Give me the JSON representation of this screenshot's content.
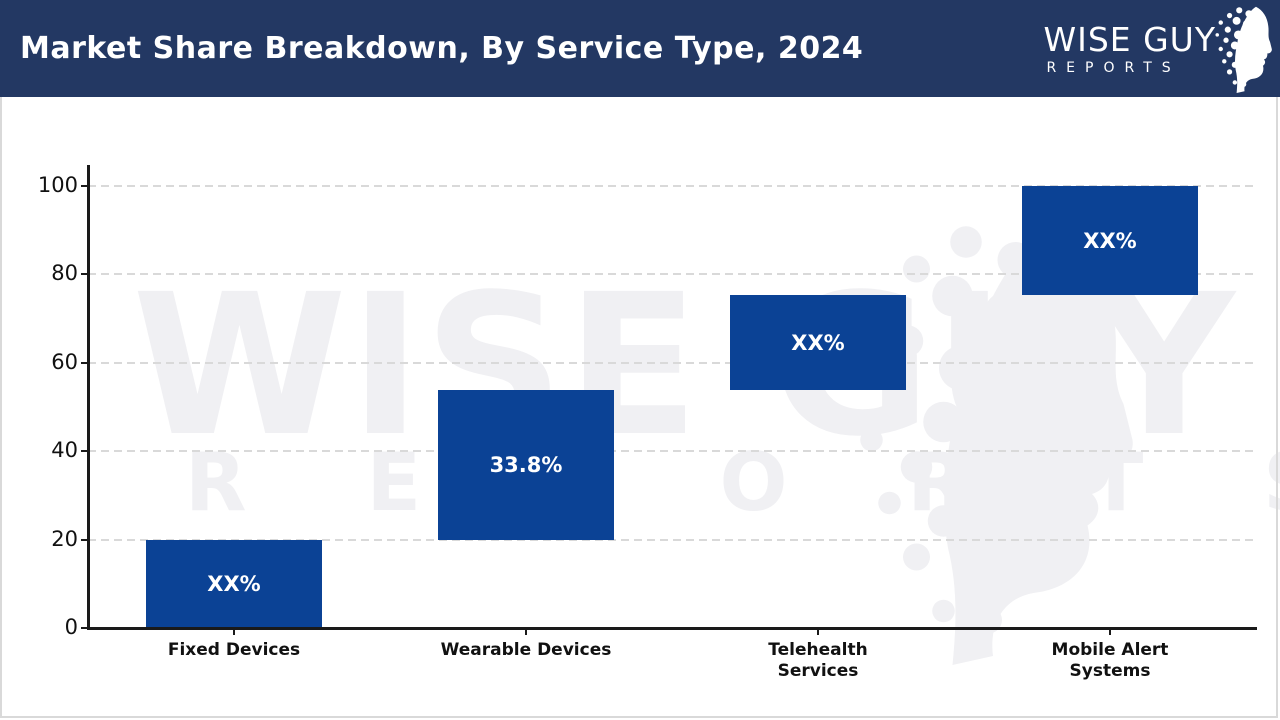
{
  "header": {
    "title": "Market Share Breakdown, By Service Type, 2024",
    "logo": {
      "line1": "WISE GUY",
      "line2": "REPORTS"
    }
  },
  "watermark": {
    "line1": "WISE GUY",
    "line2": "R E P O R T S"
  },
  "colors": {
    "header_bg": "#233863",
    "bar": "#0b4295",
    "bar_label": "#ffffff",
    "grid": "#d9d9d9",
    "axis": "#1a1a1a",
    "watermark": "#f0f0f3"
  },
  "chart_data": {
    "type": "bar",
    "subtype": "waterfall",
    "title": "Market Share Breakdown, By Service Type, 2024",
    "categories": [
      "Fixed Devices",
      "Wearable Devices",
      "Telehealth\nServices",
      "Mobile Alert\nSystems"
    ],
    "bars": [
      {
        "category": "Fixed Devices",
        "start": 0,
        "end": 20,
        "label": "XX%"
      },
      {
        "category": "Wearable Devices",
        "start": 20,
        "end": 53.8,
        "label": "33.8%"
      },
      {
        "category": "Telehealth Services",
        "start": 53.8,
        "end": 75.3,
        "label": "XX%"
      },
      {
        "category": "Mobile Alert Systems",
        "start": 75.3,
        "end": 100,
        "label": "XX%"
      }
    ],
    "ylim": [
      0,
      100
    ],
    "yticks": [
      0,
      20,
      40,
      60,
      80,
      100
    ],
    "grid": "horizontal dashed",
    "legend": "none",
    "xlabel": "",
    "ylabel": ""
  }
}
